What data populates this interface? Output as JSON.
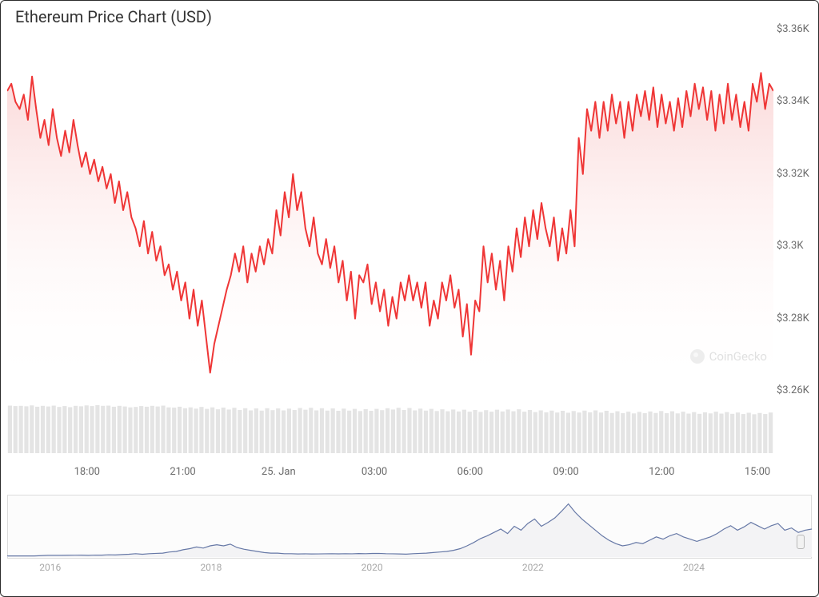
{
  "title": "Ethereum Price Chart (USD)",
  "watermark_text": "CoinGecko",
  "main_chart": {
    "type": "area",
    "line_color": "#ef3636",
    "line_width": 2,
    "fill_top_color": "#f9c9c9",
    "fill_bottom_color": "#ffffff",
    "fill_opacity": 0.7,
    "background_color": "#ffffff",
    "y_axis": {
      "min": 3260,
      "max": 3360,
      "ticks": [
        {
          "v": 3260,
          "label": "$3.26K"
        },
        {
          "v": 3280,
          "label": "$3.28K"
        },
        {
          "v": 3300,
          "label": "$3.3K"
        },
        {
          "v": 3320,
          "label": "$3.32K"
        },
        {
          "v": 3340,
          "label": "$3.34K"
        },
        {
          "v": 3360,
          "label": "$3.36K"
        }
      ],
      "tick_color": "#6a6a6a",
      "tick_fontsize": 13
    },
    "x_axis": {
      "min": 0,
      "max": 24,
      "ticks": [
        {
          "t": 2.5,
          "label": "18:00"
        },
        {
          "t": 5.5,
          "label": "21:00"
        },
        {
          "t": 8.5,
          "label": "25. Jan"
        },
        {
          "t": 11.5,
          "label": "03:00"
        },
        {
          "t": 14.5,
          "label": "06:00"
        },
        {
          "t": 17.5,
          "label": "09:00"
        },
        {
          "t": 20.5,
          "label": "12:00"
        },
        {
          "t": 23.5,
          "label": "15:00"
        }
      ],
      "tick_color": "#6a6a6a",
      "tick_fontsize": 13
    },
    "data": [
      3343,
      3345,
      3340,
      3338,
      3342,
      3335,
      3347,
      3338,
      3330,
      3335,
      3328,
      3338,
      3330,
      3325,
      3332,
      3326,
      3335,
      3328,
      3322,
      3326,
      3320,
      3324,
      3318,
      3322,
      3316,
      3320,
      3312,
      3318,
      3310,
      3315,
      3308,
      3305,
      3300,
      3307,
      3298,
      3304,
      3296,
      3300,
      3292,
      3295,
      3288,
      3293,
      3285,
      3290,
      3280,
      3288,
      3278,
      3285,
      3275,
      3265,
      3273,
      3278,
      3283,
      3288,
      3292,
      3298,
      3293,
      3300,
      3290,
      3298,
      3293,
      3300,
      3295,
      3302,
      3298,
      3310,
      3303,
      3315,
      3308,
      3320,
      3310,
      3315,
      3305,
      3300,
      3308,
      3298,
      3295,
      3302,
      3294,
      3300,
      3290,
      3296,
      3285,
      3293,
      3280,
      3292,
      3290,
      3295,
      3284,
      3290,
      3282,
      3288,
      3278,
      3286,
      3280,
      3290,
      3285,
      3292,
      3285,
      3290,
      3283,
      3290,
      3278,
      3285,
      3280,
      3290,
      3285,
      3292,
      3283,
      3288,
      3275,
      3284,
      3270,
      3285,
      3282,
      3300,
      3290,
      3298,
      3288,
      3296,
      3285,
      3300,
      3293,
      3305,
      3297,
      3308,
      3300,
      3310,
      3302,
      3312,
      3305,
      3300,
      3308,
      3296,
      3305,
      3298,
      3310,
      3300,
      3330,
      3320,
      3338,
      3332,
      3340,
      3330,
      3340,
      3332,
      3342,
      3334,
      3340,
      3330,
      3340,
      3332,
      3342,
      3336,
      3343,
      3335,
      3344,
      3333,
      3342,
      3334,
      3340,
      3332,
      3341,
      3333,
      3343,
      3336,
      3345,
      3338,
      3344,
      3335,
      3343,
      3332,
      3342,
      3334,
      3345,
      3335,
      3342,
      3333,
      3340,
      3332,
      3345,
      3340,
      3348,
      3338,
      3345,
      3343
    ]
  },
  "volume_strip": {
    "bar_color": "#e4e4e4",
    "bar_min_h": 0.55,
    "levels": [
      0.98,
      0.96,
      0.97,
      0.95,
      0.99,
      0.93,
      0.97,
      0.94,
      0.98,
      0.92,
      0.96,
      0.91,
      0.97,
      0.95,
      0.99,
      0.96,
      1.0,
      0.97,
      0.98,
      0.93,
      0.97,
      0.94,
      0.9,
      0.92,
      0.96,
      0.93,
      0.97,
      0.94,
      0.98,
      0.9,
      0.89,
      0.93,
      0.86,
      0.9,
      0.84,
      0.92,
      0.83,
      0.9,
      0.81,
      0.89,
      0.8,
      0.88,
      0.78,
      0.86,
      0.76,
      0.85,
      0.75,
      0.86,
      0.77,
      0.85,
      0.76,
      0.84,
      0.78,
      0.87,
      0.79,
      0.88,
      0.76,
      0.86,
      0.75,
      0.85,
      0.74,
      0.84,
      0.75,
      0.83,
      0.73,
      0.82,
      0.74,
      0.83,
      0.77,
      0.86,
      0.8,
      0.88,
      0.78,
      0.87,
      0.76,
      0.84,
      0.75,
      0.83,
      0.73,
      0.81,
      0.72,
      0.8,
      0.71,
      0.79,
      0.7,
      0.78,
      0.69,
      0.77,
      0.7,
      0.79,
      0.71,
      0.8,
      0.72,
      0.81,
      0.7,
      0.78,
      0.68,
      0.76,
      0.67,
      0.75,
      0.66,
      0.74,
      0.65,
      0.73,
      0.66,
      0.75,
      0.67,
      0.76,
      0.66,
      0.74,
      0.64,
      0.72,
      0.63,
      0.7,
      0.62,
      0.69,
      0.63,
      0.71,
      0.64,
      0.73,
      0.63,
      0.72,
      0.62,
      0.7,
      0.61,
      0.68,
      0.6,
      0.67,
      0.62,
      0.7,
      0.61,
      0.68,
      0.6,
      0.66,
      0.59,
      0.65,
      0.58,
      0.64,
      0.59,
      0.66
    ]
  },
  "navigator": {
    "line_color": "#6678a6",
    "line_width": 1.2,
    "fill_color": "#f3f3f5",
    "background_color": "#fcfcfc",
    "min": 0,
    "max": 1,
    "height_max": 1.0,
    "ticks": [
      {
        "t": 0.04,
        "label": "2016"
      },
      {
        "t": 0.24,
        "label": "2018"
      },
      {
        "t": 0.44,
        "label": "2020"
      },
      {
        "t": 0.64,
        "label": "2022"
      },
      {
        "t": 0.84,
        "label": "2024"
      }
    ],
    "handle_left": 0.986,
    "data": [
      0.02,
      0.02,
      0.02,
      0.02,
      0.02,
      0.025,
      0.03,
      0.03,
      0.03,
      0.032,
      0.033,
      0.034,
      0.03,
      0.035,
      0.034,
      0.04,
      0.038,
      0.045,
      0.05,
      0.06,
      0.05,
      0.06,
      0.065,
      0.07,
      0.09,
      0.1,
      0.13,
      0.15,
      0.18,
      0.16,
      0.2,
      0.22,
      0.2,
      0.23,
      0.17,
      0.14,
      0.12,
      0.1,
      0.08,
      0.07,
      0.07,
      0.06,
      0.06,
      0.055,
      0.058,
      0.055,
      0.056,
      0.058,
      0.06,
      0.057,
      0.06,
      0.058,
      0.062,
      0.06,
      0.064,
      0.065,
      0.06,
      0.058,
      0.055,
      0.052,
      0.06,
      0.065,
      0.07,
      0.08,
      0.09,
      0.1,
      0.12,
      0.15,
      0.2,
      0.26,
      0.33,
      0.38,
      0.44,
      0.5,
      0.42,
      0.55,
      0.48,
      0.6,
      0.68,
      0.55,
      0.62,
      0.7,
      0.82,
      0.95,
      0.8,
      0.68,
      0.58,
      0.48,
      0.38,
      0.3,
      0.24,
      0.2,
      0.22,
      0.26,
      0.24,
      0.3,
      0.36,
      0.32,
      0.38,
      0.42,
      0.36,
      0.32,
      0.28,
      0.32,
      0.36,
      0.42,
      0.5,
      0.56,
      0.48,
      0.54,
      0.62,
      0.56,
      0.5,
      0.56,
      0.6,
      0.48,
      0.52,
      0.44,
      0.48,
      0.5
    ]
  }
}
